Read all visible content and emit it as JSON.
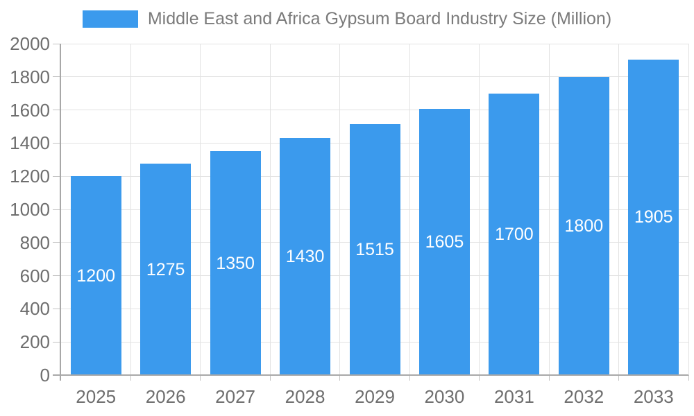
{
  "legend": {
    "label": "Middle East and Africa Gypsum Board Industry Size (Million)"
  },
  "chart_data": {
    "type": "bar",
    "title": "Middle East and Africa Gypsum Board Industry Size (Million)",
    "categories": [
      "2025",
      "2026",
      "2027",
      "2028",
      "2029",
      "2030",
      "2031",
      "2032",
      "2033"
    ],
    "values": [
      1200,
      1275,
      1350,
      1430,
      1515,
      1605,
      1700,
      1800,
      1905
    ],
    "value_labels": [
      "1200",
      "1275",
      "1350",
      "1430",
      "1515",
      "1605",
      "1700",
      "1800",
      "1905"
    ],
    "xlabel": "",
    "ylabel": "",
    "ylim": [
      0,
      2000
    ],
    "yticks": [
      0,
      200,
      400,
      600,
      800,
      1000,
      1200,
      1400,
      1600,
      1800,
      2000
    ],
    "grid": true,
    "legend_position": "top",
    "bar_color": "#3B9AED",
    "value_label_color": "#FFFFFF",
    "gridline_color": "#E2E2E2",
    "axis_color": "#A8A8A8",
    "axis_text_color": "#6E6E6E",
    "legend_text_color": "#7B7B7B"
  }
}
